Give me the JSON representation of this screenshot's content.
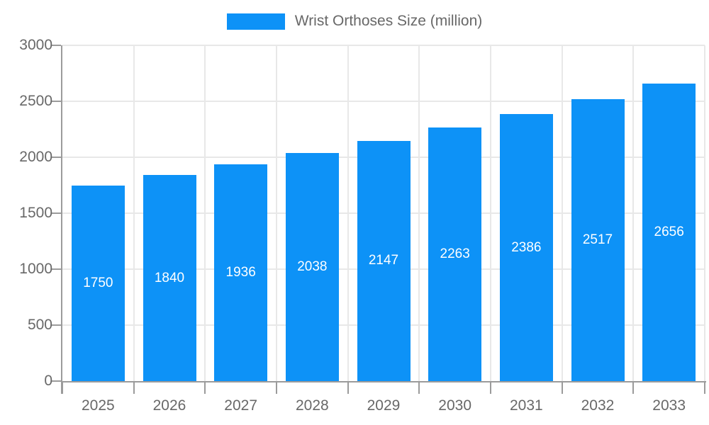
{
  "legend": {
    "label": "Wrist Orthoses Size (million)"
  },
  "colors": {
    "bar": "#0d92f7",
    "axis": "#9b9b9b",
    "grid": "#e8e8e8",
    "tick_text": "#686868",
    "value_text": "#ffffff",
    "background": "#ffffff"
  },
  "chart_data": {
    "type": "bar",
    "title": "Wrist Orthoses Size (million)",
    "categories": [
      "2025",
      "2026",
      "2027",
      "2028",
      "2029",
      "2030",
      "2031",
      "2032",
      "2033"
    ],
    "values": [
      1750,
      1840,
      1936,
      2038,
      2147,
      2263,
      2386,
      2517,
      2656
    ],
    "xlabel": "",
    "ylabel": "",
    "ylim": [
      0,
      3000
    ],
    "ytick_step": 500,
    "ytick_labels": [
      "0",
      "500",
      "1000",
      "1500",
      "2000",
      "2500",
      "3000"
    ],
    "grid": true,
    "legend_position": "top",
    "value_label_position": "inside-middle"
  }
}
